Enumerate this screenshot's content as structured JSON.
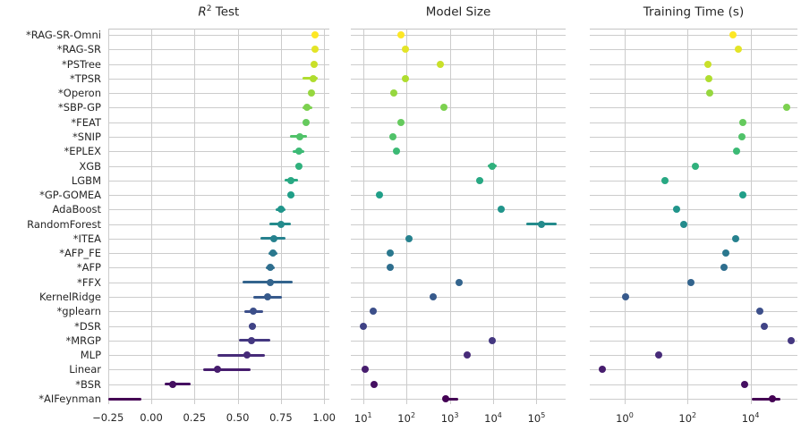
{
  "figure": {
    "background": "#ffffff",
    "grid_color": "#cccccc",
    "text_color": "#262626"
  },
  "chart_data": {
    "type": "scatter",
    "subtype": "horizontal-dot-plot-with-error-bars",
    "legend_position": "none",
    "grid": true,
    "rows": [
      "*RAG-SR-Omni",
      "*RAG-SR",
      "*PSTree",
      "*TPSR",
      "*Operon",
      "*SBP-GP",
      "*FEAT",
      "*SNIP",
      "*EPLEX",
      "XGB",
      "LGBM",
      "*GP-GOMEA",
      "AdaBoost",
      "RandomForest",
      "*ITEA",
      "*AFP_FE",
      "*AFP",
      "*FFX",
      "KernelRidge",
      "*gplearn",
      "*DSR",
      "*MRGP",
      "MLP",
      "Linear",
      "*BSR",
      "*AIFeynman"
    ],
    "row_colors": [
      "#fde725",
      "#e3e427",
      "#c9e029",
      "#afdd2f",
      "#96d73f",
      "#7cd14f",
      "#65ca5d",
      "#50c269",
      "#3cba75",
      "#30b17d",
      "#28a883",
      "#209f88",
      "#21958b",
      "#248b8c",
      "#26818e",
      "#2a788e",
      "#2e6e8e",
      "#33648d",
      "#375a8c",
      "#3c4f8a",
      "#404386",
      "#443780",
      "#472b79",
      "#471d6e",
      "#450f61",
      "#440154"
    ],
    "panels": [
      {
        "id": "r2-test",
        "title": {
          "italic": "R",
          "sup": "2",
          "rest": " Test"
        },
        "scale": "linear",
        "xlim": [
          -0.25,
          1.03
        ],
        "ticks": [
          -0.25,
          0.0,
          0.25,
          0.5,
          0.75,
          1.0
        ],
        "tick_labels": [
          "−0.25",
          "0.00",
          "0.25",
          "0.50",
          "0.75",
          "1.00"
        ],
        "values": [
          0.947,
          0.945,
          0.944,
          0.937,
          0.925,
          0.902,
          0.897,
          0.859,
          0.856,
          0.852,
          0.81,
          0.81,
          0.75,
          0.75,
          0.71,
          0.705,
          0.69,
          0.69,
          0.675,
          0.59,
          0.585,
          0.58,
          0.553,
          0.385,
          0.125,
          null
        ],
        "errors": [
          null,
          null,
          null,
          [
            0.877,
            0.963
          ],
          null,
          [
            0.873,
            0.933
          ],
          [
            0.878,
            0.913
          ],
          [
            0.8,
            0.9
          ],
          [
            0.82,
            0.886
          ],
          [
            0.834,
            0.872
          ],
          [
            0.77,
            0.85
          ],
          [
            0.79,
            0.828
          ],
          [
            0.72,
            0.778
          ],
          [
            0.685,
            0.81
          ],
          [
            0.63,
            0.775
          ],
          [
            0.68,
            0.731
          ],
          [
            0.662,
            0.716
          ],
          [
            0.53,
            0.82
          ],
          [
            0.59,
            0.755
          ],
          [
            0.54,
            0.645
          ],
          [
            0.565,
            0.607
          ],
          [
            0.505,
            0.69
          ],
          [
            0.385,
            0.655
          ],
          [
            0.3,
            0.575
          ],
          [
            0.08,
            0.228
          ],
          [
            -0.25,
            -0.057
          ]
        ]
      },
      {
        "id": "model-size",
        "title": {
          "rest": "Model Size"
        },
        "scale": "log",
        "xlim": [
          5.2,
          470000
        ],
        "ticks": [
          10,
          100,
          1000,
          10000,
          100000
        ],
        "tick_exponents": [
          1,
          2,
          3,
          4,
          5
        ],
        "values": [
          74,
          94,
          590,
          96,
          50,
          720,
          76,
          48,
          59,
          9500,
          5000,
          24,
          15000,
          130000,
          115,
          42,
          42,
          1650,
          410,
          17,
          10,
          9400,
          2500,
          11,
          18,
          800
        ],
        "errors": [
          null,
          null,
          null,
          null,
          null,
          null,
          null,
          null,
          null,
          [
            7400,
            12000
          ],
          [
            4300,
            5900
          ],
          null,
          null,
          [
            58000,
            290000
          ],
          null,
          null,
          null,
          null,
          null,
          null,
          null,
          null,
          null,
          null,
          null,
          [
            700,
            1600
          ]
        ]
      },
      {
        "id": "training-time",
        "title": {
          "rest": "Training Time (s)"
        },
        "scale": "log",
        "xlim": [
          0.078,
          310000
        ],
        "ticks": [
          1,
          100,
          10000
        ],
        "tick_exponents": [
          0,
          2,
          4
        ],
        "values": [
          2800,
          4000,
          450,
          460,
          520,
          140000,
          5800,
          5200,
          3600,
          175,
          19,
          5700,
          45,
          78,
          3300,
          1600,
          1400,
          130,
          1.1,
          19500,
          28000,
          190000,
          12,
          0.2,
          6300,
          49000
        ],
        "errors": [
          null,
          null,
          null,
          null,
          null,
          null,
          null,
          null,
          null,
          null,
          null,
          null,
          null,
          null,
          null,
          null,
          null,
          null,
          null,
          null,
          null,
          null,
          null,
          null,
          null,
          [
            11000,
            87000
          ]
        ]
      }
    ]
  }
}
